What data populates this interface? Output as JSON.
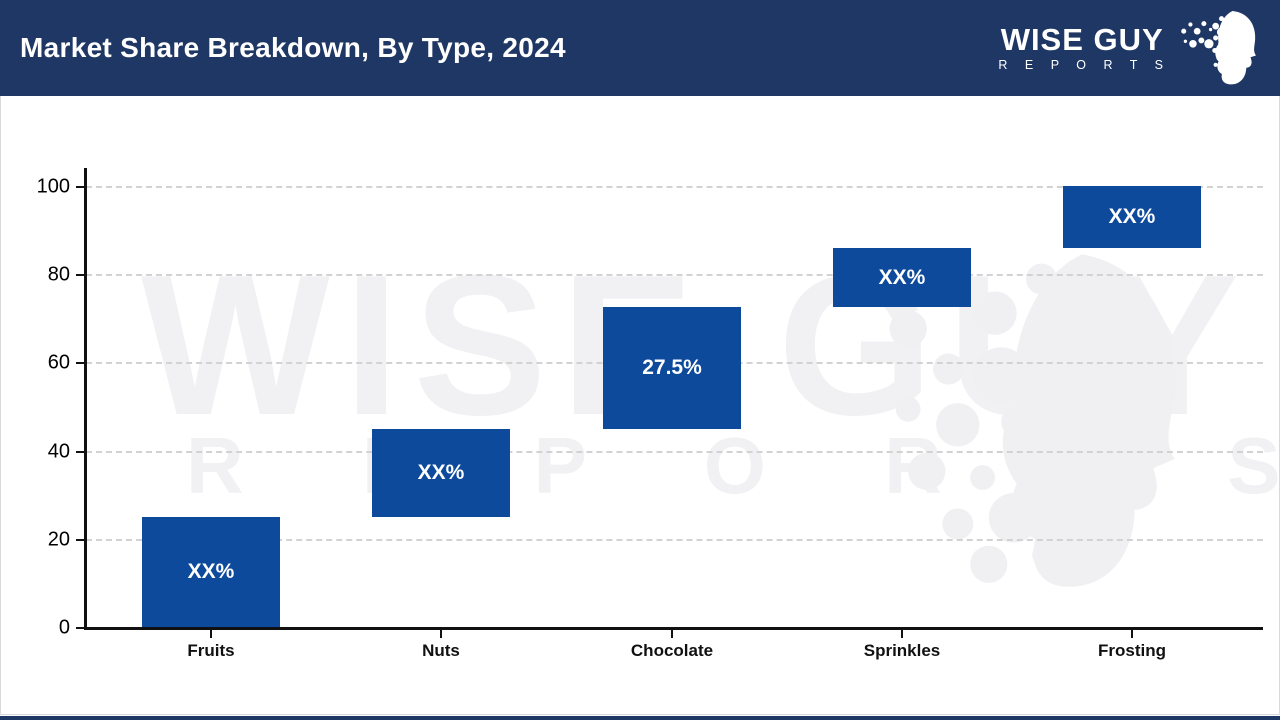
{
  "header": {
    "title": "Market Share Breakdown, By Type, 2024",
    "logo": {
      "line1": "WISE GUY",
      "line2": "R E P O R T S"
    }
  },
  "watermark": {
    "line1": "WISE GUY",
    "line2": "R E P O R T S"
  },
  "colors": {
    "header_bg": "#1e3764",
    "bar": "#0d4a9c",
    "grid": "#d2d2d2",
    "axis": "#111111",
    "watermark": "#f1f1f4",
    "card_border": "#d9d9d9",
    "footer_bar": "#1e3764",
    "bar_label": "#ffffff"
  },
  "chart_data": {
    "type": "bar",
    "subtype": "waterfall",
    "title": "Market Share Breakdown, By Type, 2024",
    "categories": [
      "Fruits",
      "Nuts",
      "Chocolate",
      "Sprinkles",
      "Frosting"
    ],
    "segments": [
      {
        "category": "Fruits",
        "start": 0,
        "end": 25,
        "value": 25,
        "label": "XX%"
      },
      {
        "category": "Nuts",
        "start": 25,
        "end": 45,
        "value": 20,
        "label": "XX%"
      },
      {
        "category": "Chocolate",
        "start": 45,
        "end": 72.5,
        "value": 27.5,
        "label": "27.5%"
      },
      {
        "category": "Sprinkles",
        "start": 72.5,
        "end": 86,
        "value": 13.5,
        "label": "XX%"
      },
      {
        "category": "Frosting",
        "start": 86,
        "end": 100,
        "value": 14,
        "label": "XX%"
      }
    ],
    "yticks": [
      0,
      20,
      40,
      60,
      80,
      100
    ],
    "ylim": [
      0,
      105
    ],
    "xlabel": "",
    "ylabel": "",
    "grid": "horizontal-dashed",
    "legend": "none"
  }
}
